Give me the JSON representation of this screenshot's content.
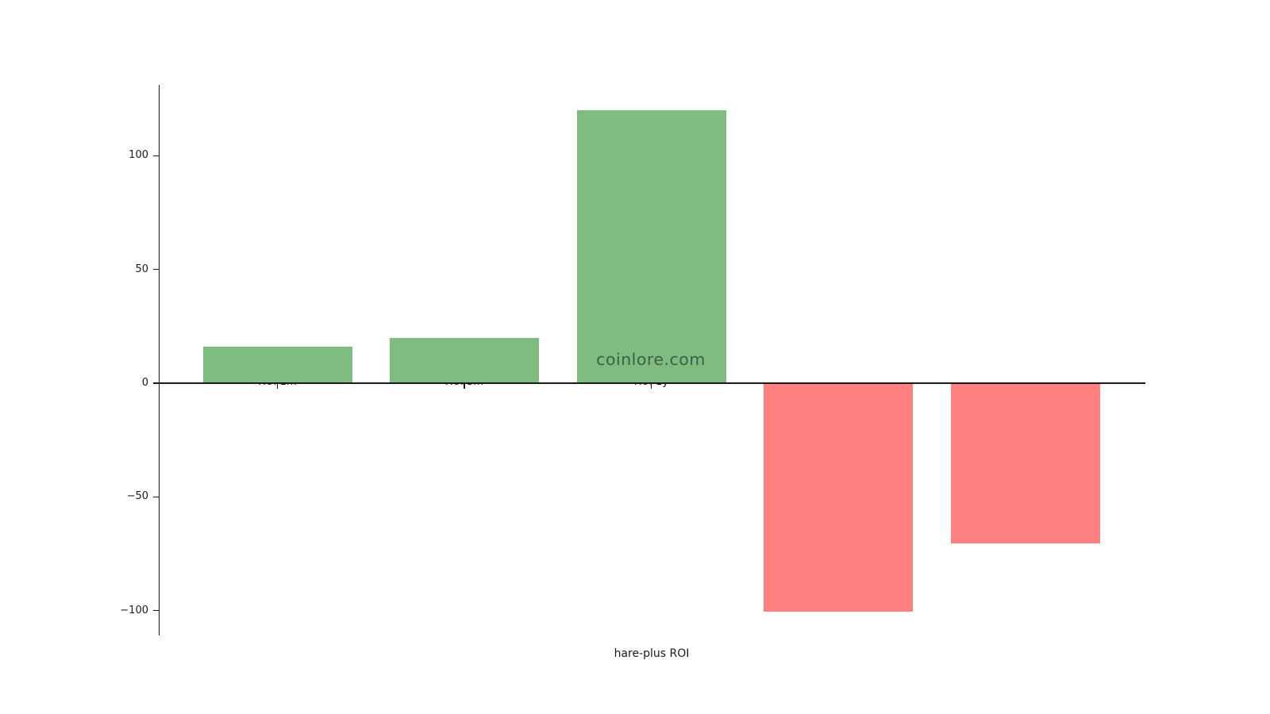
{
  "page": {
    "background": "#ffffff"
  },
  "chart_data": {
    "type": "bar",
    "title": "hare-plus ROI",
    "watermark": "coinlore.com",
    "categories": [
      "ROI 1m",
      "ROI 3m",
      "ROI 1y",
      "",
      ""
    ],
    "values": [
      16,
      20,
      120,
      -100,
      -70
    ],
    "yticks": [
      100,
      50,
      0,
      -50,
      -100
    ],
    "ylim": [
      -111,
      131
    ],
    "xlabel": "hare-plus ROI",
    "ylabel": "",
    "grid": false,
    "legend": "none",
    "colors": {
      "positive_bar": "#7ebc7f",
      "negative_bar": "#ff8080",
      "axis": "#1a1a1a",
      "tick_text": "#1a1a1a",
      "watermark": "#3f5e49"
    }
  }
}
